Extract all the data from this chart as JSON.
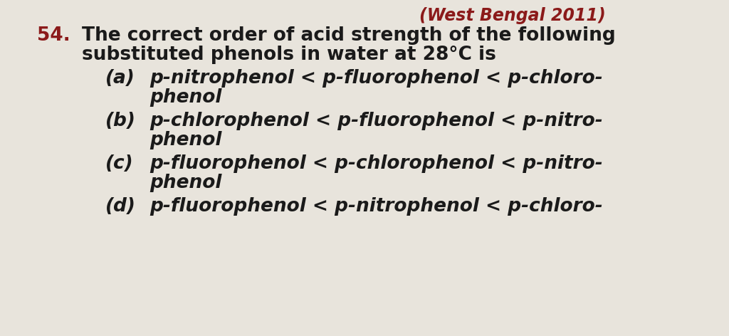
{
  "background_color": "#e8e4dc",
  "header_text": "(West Bengal 2011)",
  "header_color": "#8B1A1A",
  "header_fontsize": 17,
  "question_number": "54.",
  "question_number_color": "#8B1A1A",
  "question_number_fontsize": 19,
  "question_line1": "The correct order of acid strength of the following",
  "question_line2": "substituted phenols in water at 28°C is",
  "question_fontsize": 19,
  "question_color": "#1a1a1a",
  "option_a_label": "(a)",
  "option_a_line1": "p-nitrophenol < p-fluorophenol < p-chloro-",
  "option_a_line2": "phenol",
  "option_b_label": "(b)",
  "option_b_line1": "p-chlorophenol < p-fluorophenol < p-nitro-",
  "option_b_line2": "phenol",
  "option_c_label": "(c)",
  "option_c_line1": "p-fluorophenol < p-chlorophenol < p-nitro-",
  "option_c_line2": "phenol",
  "option_d_label": "(d)",
  "option_d_line1": "p-fluorophenol < p-nitrophenol < p-chloro-",
  "option_label_fontsize": 19,
  "option_text_fontsize": 19,
  "option_label_color": "#1a1a1a",
  "option_text_color": "#1a1a1a"
}
